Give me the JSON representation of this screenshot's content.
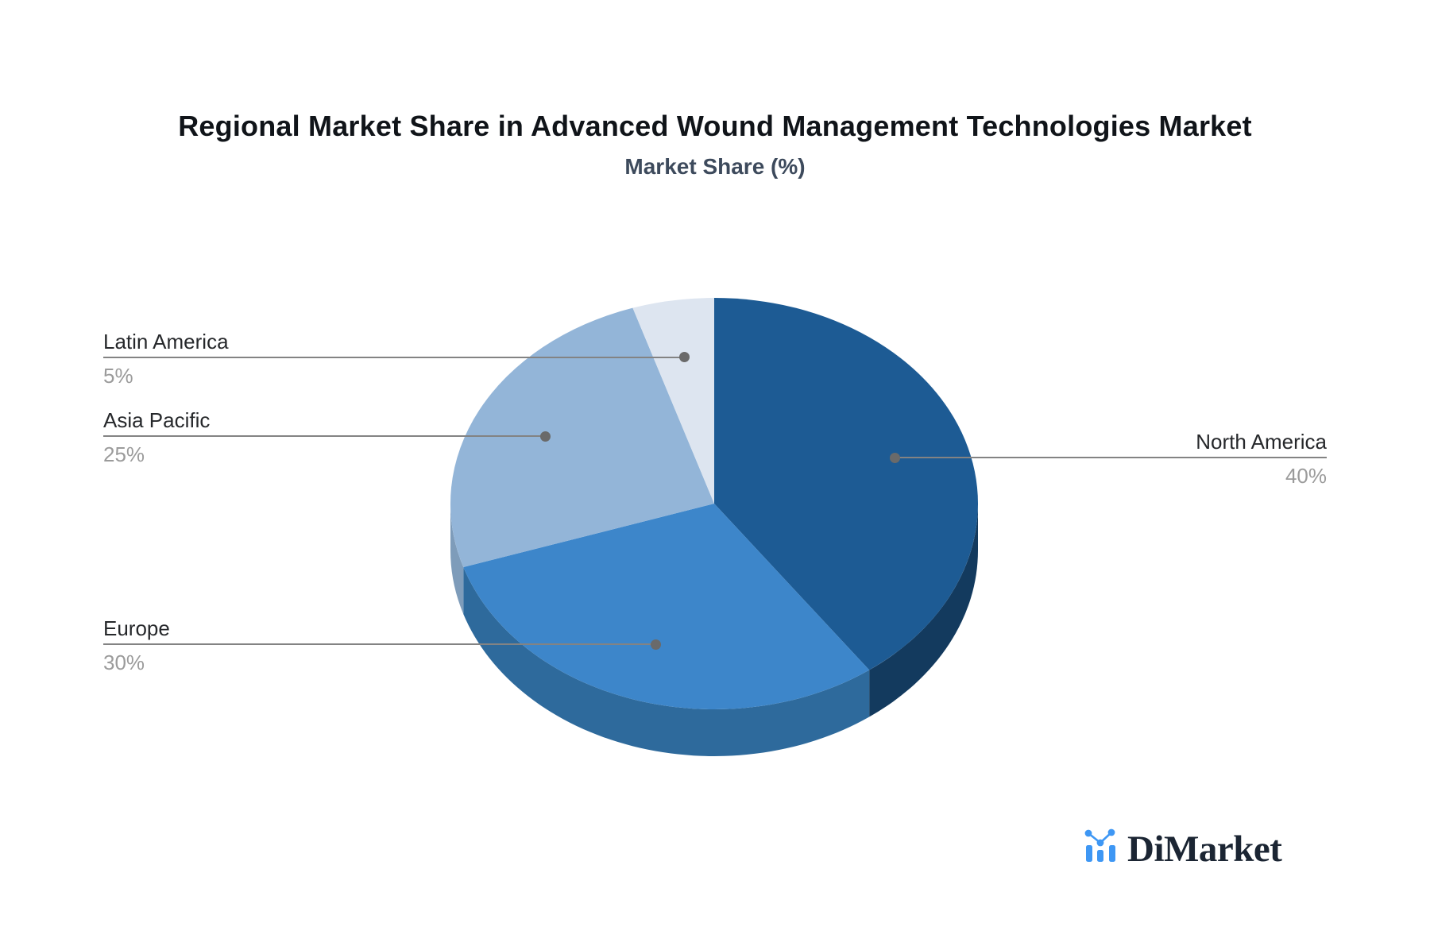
{
  "chart_data": {
    "type": "pie",
    "title": "Regional Market Share in Advanced Wound Management Technologies Market",
    "subtitle": "Market Share (%)",
    "unit": "%",
    "effect": "3d-depth",
    "legend_position": "none",
    "direction": "clockwise",
    "start_angle_deg": 0,
    "slices": [
      {
        "label": "North America",
        "value": 40,
        "value_label": "40%",
        "color": "#1d5b94",
        "side_color": "#133a5e"
      },
      {
        "label": "Europe",
        "value": 30,
        "value_label": "30%",
        "color": "#3d86ca",
        "side_color": "#2e6a9c"
      },
      {
        "label": "Asia Pacific",
        "value": 25,
        "value_label": "25%",
        "color": "#93b5d8",
        "side_color": "#7e9cba"
      },
      {
        "label": "Latin America",
        "value": 5,
        "value_label": "5%",
        "color": "#dde5f0",
        "side_color": "#c3d0e2"
      }
    ],
    "callout_style": {
      "name_color": "#26282b",
      "value_color": "#9b9b9b",
      "line_color": "#838383",
      "dot_color": "#6a6a6a"
    }
  },
  "brand": {
    "name": "DiMarket",
    "icon": "bar-line-chart-icon",
    "icon_color": "#3e97f4",
    "text_color": "#1b2533"
  }
}
